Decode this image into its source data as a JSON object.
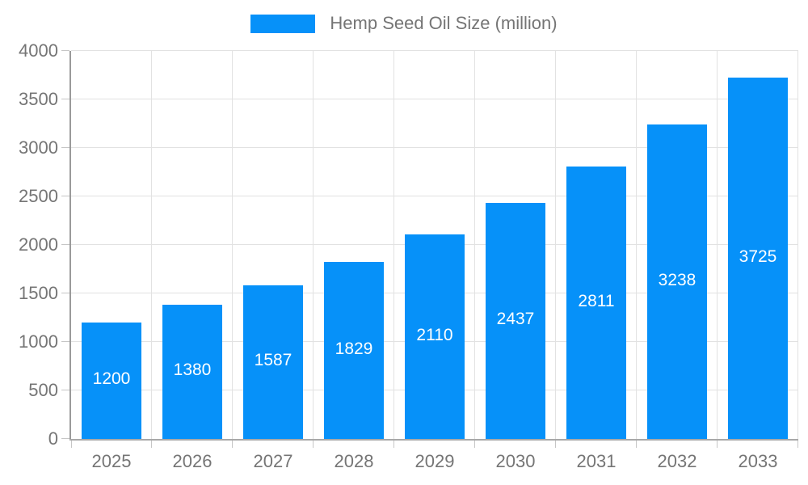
{
  "chart_data": {
    "type": "bar",
    "title": "Hemp Seed Oil Size (million)",
    "series_name": "Hemp Seed Oil Size (million)",
    "categories": [
      "2025",
      "2026",
      "2027",
      "2028",
      "2029",
      "2030",
      "2031",
      "2032",
      "2033"
    ],
    "values": [
      1200,
      1380,
      1587,
      1829,
      2110,
      2437,
      2811,
      3238,
      3725
    ],
    "value_labels": [
      "1200",
      "1380",
      "1587",
      "1829",
      "2110",
      "2437",
      "2811",
      "3238",
      "3725"
    ],
    "yticks": [
      "0",
      "500",
      "1000",
      "1500",
      "2000",
      "2500",
      "3000",
      "3500",
      "4000"
    ],
    "ylim": [
      0,
      4000
    ],
    "ytick_step": 500,
    "grid": true,
    "legend_position": "top-center",
    "colors": {
      "bar": "#0691f9",
      "bar_label": "#ffffff",
      "axis": "#9a9a9a",
      "gridline": "#e2e2e2",
      "tick": "#c6c6c6",
      "axis_text": "#757575",
      "background": "#ffffff"
    }
  }
}
